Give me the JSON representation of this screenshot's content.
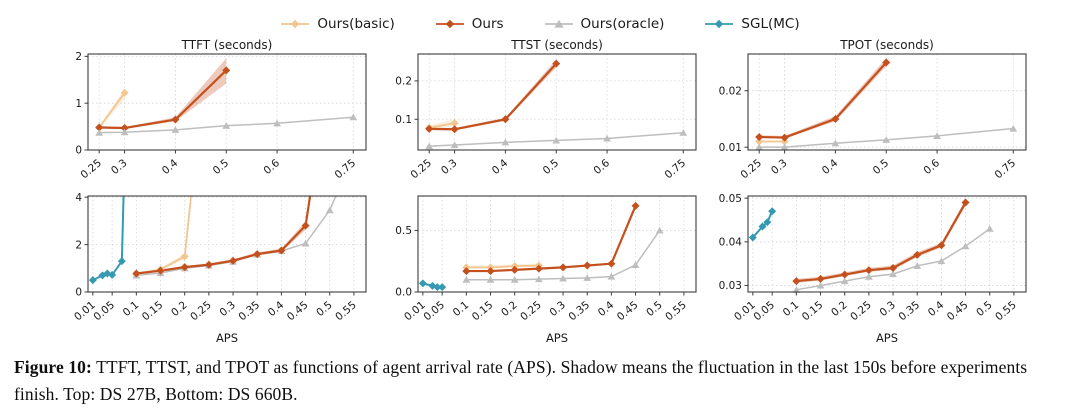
{
  "colors": {
    "basic": "#F2C68F",
    "ours": "#C4501E",
    "oracle": "#BEBEBE",
    "sgl": "#3599B2",
    "spine": "#3c3c3c",
    "grid": "#d4d4d4",
    "text": "#1a1a1a"
  },
  "legend": {
    "items": [
      {
        "label": "Ours(basic)",
        "color": "#F2C68F",
        "marker": "diamond"
      },
      {
        "label": "Ours",
        "color": "#C4501E",
        "marker": "diamond"
      },
      {
        "label": "Ours(oracle)",
        "color": "#BEBEBE",
        "marker": "triangle"
      },
      {
        "label": "SGL(MC)",
        "color": "#3599B2",
        "marker": "diamond"
      }
    ]
  },
  "caption": {
    "prefix": "Figure 10:",
    "body": " TTFT, TTST, and TPOT as functions of agent arrival rate (APS). Shadow means the fluctuation in the last 150s before experiments finish. Top: DS 27B, Bottom: DS 660B."
  },
  "chart_data": [
    {
      "type": "line",
      "title": "TTFT (seconds)",
      "xlabel": "",
      "row": "top",
      "grid": true,
      "xlim": [
        0.228,
        0.775
      ],
      "ylim": [
        0,
        2.05
      ],
      "xticks": [
        0.25,
        0.3,
        0.4,
        0.5,
        0.6,
        0.75
      ],
      "xtick_labels": [
        "0.25",
        "0.3",
        "0.4",
        "0.5",
        "0.6",
        "0.75"
      ],
      "yticks": [
        0,
        1,
        2
      ],
      "ytick_labels": [
        "0",
        "1",
        "2"
      ],
      "series": [
        {
          "name": "Ours(basic)",
          "color": "#F2C68F",
          "marker": "diamond",
          "x": [
            0.25,
            0.3
          ],
          "y": [
            0.48,
            1.22
          ],
          "band": {
            "lo": [
              0.46,
              1.08
            ],
            "hi": [
              0.5,
              1.32
            ]
          }
        },
        {
          "name": "Ours",
          "color": "#C4501E",
          "marker": "diamond",
          "x": [
            0.25,
            0.3,
            0.4,
            0.5
          ],
          "y": [
            0.48,
            0.47,
            0.65,
            1.7
          ],
          "band": {
            "lo": [
              0.46,
              0.45,
              0.61,
              1.42
            ],
            "hi": [
              0.51,
              0.49,
              0.7,
              1.96
            ]
          }
        },
        {
          "name": "Ours(oracle)",
          "color": "#BEBEBE",
          "marker": "triangle",
          "x": [
            0.25,
            0.3,
            0.4,
            0.5,
            0.6,
            0.75
          ],
          "y": [
            0.37,
            0.38,
            0.43,
            0.52,
            0.57,
            0.7
          ]
        }
      ]
    },
    {
      "type": "line",
      "title": "TTST (seconds)",
      "xlabel": "",
      "row": "top",
      "grid": true,
      "xlim": [
        0.228,
        0.775
      ],
      "ylim": [
        0.02,
        0.27
      ],
      "xticks": [
        0.25,
        0.3,
        0.4,
        0.5,
        0.6,
        0.75
      ],
      "xtick_labels": [
        "0.25",
        "0.3",
        "0.4",
        "0.5",
        "0.6",
        "0.75"
      ],
      "yticks": [
        0.1,
        0.2
      ],
      "ytick_labels": [
        "0.1",
        "0.2"
      ],
      "series": [
        {
          "name": "Ours(basic)",
          "color": "#F2C68F",
          "marker": "diamond",
          "x": [
            0.25,
            0.3
          ],
          "y": [
            0.078,
            0.09
          ],
          "band": {
            "lo": [
              0.074,
              0.082
            ],
            "hi": [
              0.084,
              0.1
            ]
          }
        },
        {
          "name": "Ours",
          "color": "#C4501E",
          "marker": "diamond",
          "x": [
            0.25,
            0.3,
            0.4,
            0.5
          ],
          "y": [
            0.075,
            0.074,
            0.1,
            0.245
          ],
          "band": {
            "lo": [
              0.072,
              0.071,
              0.096,
              0.235
            ],
            "hi": [
              0.078,
              0.077,
              0.104,
              0.256
            ]
          }
        },
        {
          "name": "Ours(oracle)",
          "color": "#BEBEBE",
          "marker": "triangle",
          "x": [
            0.25,
            0.3,
            0.4,
            0.5,
            0.6,
            0.75
          ],
          "y": [
            0.03,
            0.033,
            0.04,
            0.045,
            0.05,
            0.065
          ]
        }
      ]
    },
    {
      "type": "line",
      "title": "TPOT (seconds)",
      "xlabel": "",
      "row": "top",
      "grid": true,
      "xlim": [
        0.228,
        0.775
      ],
      "ylim": [
        0.0095,
        0.0265
      ],
      "xticks": [
        0.25,
        0.3,
        0.4,
        0.5,
        0.6,
        0.75
      ],
      "xtick_labels": [
        "0.25",
        "0.3",
        "0.4",
        "0.5",
        "0.6",
        "0.75"
      ],
      "yticks": [
        0.01,
        0.02
      ],
      "ytick_labels": [
        "0.01",
        "0.02"
      ],
      "series": [
        {
          "name": "Ours(basic)",
          "color": "#F2C68F",
          "marker": "diamond",
          "x": [
            0.25,
            0.3
          ],
          "y": [
            0.011,
            0.011
          ]
        },
        {
          "name": "Ours",
          "color": "#C4501E",
          "marker": "diamond",
          "x": [
            0.25,
            0.3,
            0.4,
            0.5
          ],
          "y": [
            0.0118,
            0.0117,
            0.015,
            0.025
          ],
          "band": {
            "lo": [
              0.0116,
              0.0115,
              0.0146,
              0.0243
            ],
            "hi": [
              0.0121,
              0.012,
              0.0155,
              0.0258
            ]
          }
        },
        {
          "name": "Ours(oracle)",
          "color": "#BEBEBE",
          "marker": "triangle",
          "x": [
            0.25,
            0.3,
            0.4,
            0.5,
            0.6,
            0.75
          ],
          "y": [
            0.01,
            0.01,
            0.0107,
            0.0113,
            0.012,
            0.0133
          ]
        }
      ]
    },
    {
      "type": "line",
      "title": "",
      "xlabel": "APS",
      "row": "bottom",
      "grid": true,
      "xlim": [
        0,
        0.575
      ],
      "ylim": [
        0,
        4.05
      ],
      "xticks": [
        0.01,
        0.05,
        0.1,
        0.15,
        0.2,
        0.25,
        0.3,
        0.35,
        0.4,
        0.45,
        0.5,
        0.55
      ],
      "xtick_labels": [
        "0.01",
        "0.05",
        "0.1",
        "0.15",
        "0.2",
        "0.25",
        "0.3",
        "0.35",
        "0.4",
        "0.45",
        "0.5",
        "0.55"
      ],
      "yticks": [
        0,
        2,
        4
      ],
      "ytick_labels": [
        "0",
        "2",
        "4"
      ],
      "series": [
        {
          "name": "SGL(MC)",
          "color": "#3599B2",
          "marker": "diamond",
          "x": [
            0.01,
            0.03,
            0.04,
            0.05,
            0.07,
            0.074
          ],
          "y": [
            0.5,
            0.7,
            0.78,
            0.72,
            1.3,
            4.4
          ]
        },
        {
          "name": "Ours(basic)",
          "color": "#F2C68F",
          "marker": "diamond",
          "x": [
            0.1,
            0.15,
            0.2,
            0.215
          ],
          "y": [
            0.75,
            0.95,
            1.5,
            4.4
          ],
          "band": {
            "lo": [
              0.7,
              0.9,
              1.38,
              4.4
            ],
            "hi": [
              0.82,
              1.02,
              1.62,
              4.4
            ]
          }
        },
        {
          "name": "Ours(oracle)",
          "color": "#BEBEBE",
          "marker": "triangle",
          "x": [
            0.1,
            0.15,
            0.2,
            0.25,
            0.3,
            0.35,
            0.4,
            0.45,
            0.5,
            0.52
          ],
          "y": [
            0.7,
            0.8,
            1.0,
            1.12,
            1.28,
            1.58,
            1.73,
            2.05,
            3.45,
            4.4
          ]
        },
        {
          "name": "Ours",
          "color": "#C4501E",
          "marker": "diamond",
          "x": [
            0.1,
            0.15,
            0.2,
            0.25,
            0.3,
            0.35,
            0.4,
            0.45,
            0.462
          ],
          "y": [
            0.78,
            0.9,
            1.05,
            1.15,
            1.32,
            1.6,
            1.75,
            2.8,
            4.4
          ],
          "band": {
            "lo": [
              0.74,
              0.86,
              1.0,
              1.1,
              1.26,
              1.54,
              1.68,
              2.62,
              4.4
            ],
            "hi": [
              0.83,
              0.95,
              1.1,
              1.21,
              1.38,
              1.67,
              1.83,
              2.98,
              4.4
            ]
          }
        }
      ]
    },
    {
      "type": "line",
      "title": "",
      "xlabel": "APS",
      "row": "bottom",
      "grid": true,
      "xlim": [
        0,
        0.575
      ],
      "ylim": [
        0,
        0.78
      ],
      "xticks": [
        0.01,
        0.05,
        0.1,
        0.15,
        0.2,
        0.25,
        0.3,
        0.35,
        0.4,
        0.45,
        0.5,
        0.55
      ],
      "xtick_labels": [
        "0.01",
        "0.05",
        "0.1",
        "0.15",
        "0.2",
        "0.25",
        "0.3",
        "0.35",
        "0.4",
        "0.45",
        "0.5",
        "0.55"
      ],
      "yticks": [
        0.0,
        0.5
      ],
      "ytick_labels": [
        "0.0",
        "0.5"
      ],
      "series": [
        {
          "name": "SGL(MC)",
          "color": "#3599B2",
          "marker": "diamond",
          "x": [
            0.01,
            0.03,
            0.04,
            0.05
          ],
          "y": [
            0.07,
            0.05,
            0.04,
            0.04
          ]
        },
        {
          "name": "Ours(basic)",
          "color": "#F2C68F",
          "marker": "diamond",
          "x": [
            0.1,
            0.15,
            0.2,
            0.25
          ],
          "y": [
            0.2,
            0.2,
            0.21,
            0.215
          ],
          "band": {
            "lo": [
              0.19,
              0.19,
              0.198,
              0.203
            ],
            "hi": [
              0.215,
              0.214,
              0.225,
              0.23
            ]
          }
        },
        {
          "name": "Ours(oracle)",
          "color": "#BEBEBE",
          "marker": "triangle",
          "x": [
            0.1,
            0.15,
            0.2,
            0.25,
            0.3,
            0.35,
            0.4,
            0.45,
            0.5
          ],
          "y": [
            0.1,
            0.1,
            0.1,
            0.105,
            0.11,
            0.115,
            0.125,
            0.22,
            0.5
          ]
        },
        {
          "name": "Ours",
          "color": "#C4501E",
          "marker": "diamond",
          "x": [
            0.1,
            0.15,
            0.2,
            0.25,
            0.3,
            0.35,
            0.4,
            0.45
          ],
          "y": [
            0.17,
            0.17,
            0.18,
            0.19,
            0.2,
            0.215,
            0.23,
            0.7
          ],
          "band": {
            "lo": [
              0.165,
              0.165,
              0.175,
              0.185,
              0.194,
              0.208,
              0.222,
              0.68
            ],
            "hi": [
              0.178,
              0.178,
              0.188,
              0.198,
              0.208,
              0.224,
              0.24,
              0.72
            ]
          }
        }
      ]
    },
    {
      "type": "line",
      "title": "",
      "xlabel": "APS",
      "row": "bottom",
      "grid": true,
      "xlim": [
        0,
        0.575
      ],
      "ylim": [
        0.0285,
        0.0505
      ],
      "xticks": [
        0.01,
        0.05,
        0.1,
        0.15,
        0.2,
        0.25,
        0.3,
        0.35,
        0.4,
        0.45,
        0.5,
        0.55
      ],
      "xtick_labels": [
        "0.01",
        "0.05",
        "0.1",
        "0.15",
        "0.2",
        "0.25",
        "0.3",
        "0.35",
        "0.4",
        "0.45",
        "0.5",
        "0.55"
      ],
      "yticks": [
        0.03,
        0.04,
        0.05
      ],
      "ytick_labels": [
        "0.03",
        "0.04",
        "0.05"
      ],
      "series": [
        {
          "name": "SGL(MC)",
          "color": "#3599B2",
          "marker": "diamond",
          "x": [
            0.01,
            0.03,
            0.04,
            0.05
          ],
          "y": [
            0.041,
            0.0435,
            0.0445,
            0.047
          ]
        },
        {
          "name": "Ours(oracle)",
          "color": "#BEBEBE",
          "marker": "triangle",
          "x": [
            0.1,
            0.15,
            0.2,
            0.25,
            0.3,
            0.35,
            0.4,
            0.45,
            0.5
          ],
          "y": [
            0.029,
            0.03,
            0.031,
            0.032,
            0.0326,
            0.0345,
            0.0356,
            0.039,
            0.043
          ]
        },
        {
          "name": "Ours",
          "color": "#C4501E",
          "marker": "diamond",
          "x": [
            0.1,
            0.15,
            0.2,
            0.25,
            0.3,
            0.35,
            0.4,
            0.45
          ],
          "y": [
            0.031,
            0.0315,
            0.0325,
            0.0335,
            0.034,
            0.037,
            0.0392,
            0.049
          ],
          "band": {
            "lo": [
              0.0306,
              0.0311,
              0.0321,
              0.0331,
              0.0336,
              0.0365,
              0.0387,
              0.0482
            ],
            "hi": [
              0.0315,
              0.032,
              0.033,
              0.034,
              0.0346,
              0.0376,
              0.0398,
              0.0497
            ]
          }
        }
      ]
    }
  ]
}
